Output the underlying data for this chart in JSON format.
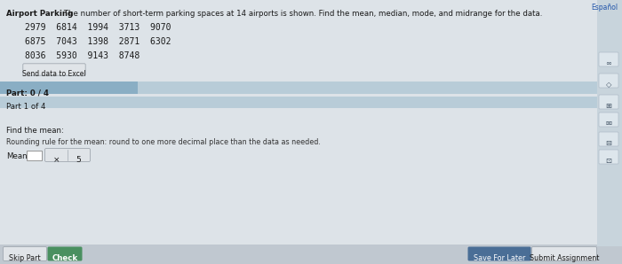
{
  "title_bold": "Airport Parking",
  "title_normal": " The number of short-term parking spaces at 14 airports is shown. Find the mean, median, mode, and midrange for the data.",
  "data_rows": [
    "2979  6814  1994  3713  9070",
    "6875  7043  1398  2871  6302",
    "8036  5930  9143  8748"
  ],
  "send_data_button": "Send data to Excel",
  "part_progress": "Part: 0 / 4",
  "part_label": "Part 1 of 4",
  "find_mean_text": "Find the mean:",
  "rounding_rule": "Rounding rule for the mean: round to one more decimal place than the data as needed.",
  "mean_label": "Mean:",
  "skip_part_btn": "Skip Part",
  "check_btn": "Check",
  "save_later_btn": "Save For Later",
  "submit_btn": "Submit Assignment",
  "bg_color": "#c8d0d8",
  "main_bg": "#dde3e8",
  "white_bg": "#f0f2f4",
  "blue_bar_color": "#b8ccd8",
  "progress_bar_fill": "#8aaec4",
  "bottom_bar_color": "#c0c8d0",
  "button_gray_bg": "#e0e4e8",
  "button_gray_border": "#a0a8b0",
  "button_green": "#4a9060",
  "button_save_bg": "#4a6e96",
  "text_dark": "#1a1a1a",
  "text_medium": "#333333",
  "icon_bar_bg": "#c8d4dc",
  "expanol_text": "Español",
  "median_text": "median,"
}
